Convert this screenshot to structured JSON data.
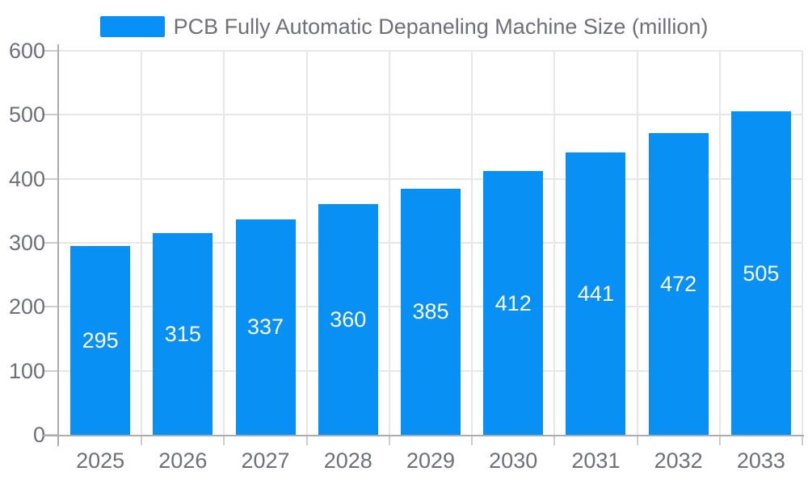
{
  "legend": {
    "label": "PCB Fully Automatic Depaneling Machine Size (million)"
  },
  "chart_data": {
    "type": "bar",
    "title": "PCB Fully Automatic Depaneling Machine Size (million)",
    "series_name": "PCB Fully Automatic Depaneling Machine Size (million)",
    "categories": [
      "2025",
      "2026",
      "2027",
      "2028",
      "2029",
      "2030",
      "2031",
      "2032",
      "2033"
    ],
    "values": [
      295,
      315,
      337,
      360,
      385,
      412,
      441,
      472,
      505
    ],
    "xlabel": "",
    "ylabel": "",
    "ylim": [
      0,
      600
    ],
    "yticks": [
      0,
      100,
      200,
      300,
      400,
      500,
      600
    ],
    "grid": true,
    "legend_position": "top",
    "colors": {
      "bar": "#0990f5",
      "axis_text": "#6e7079",
      "value_label": "#ffffff",
      "gridline": "#e7e7e7",
      "axis_line": "#acacac",
      "tick": "#cccccc"
    }
  }
}
